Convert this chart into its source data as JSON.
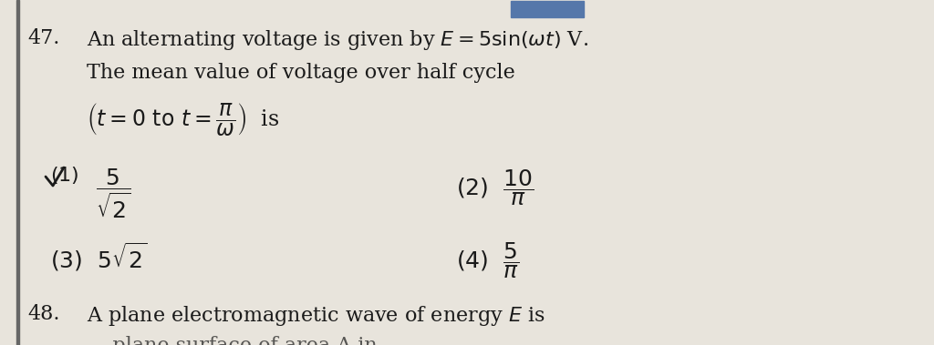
{
  "bg_color": "#e8e4dc",
  "text_color": "#1a1a1a",
  "left_bar_color": "#666666",
  "font_size_main": 15,
  "font_size_options": 16,
  "q47_num": "47.",
  "q48_num": "48.",
  "q48_line1": "A plane electromagnetic wave of energy $E$ is"
}
